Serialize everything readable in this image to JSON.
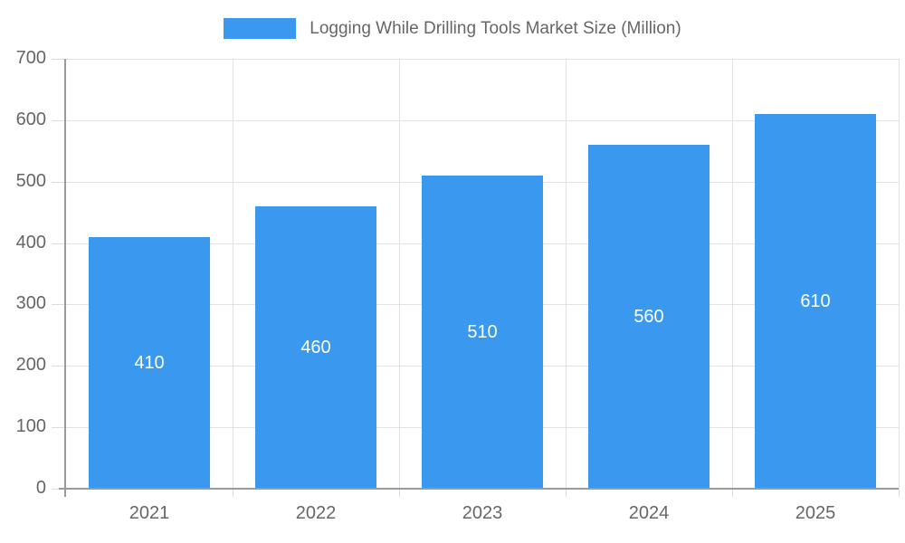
{
  "chart_data": {
    "type": "bar",
    "legend_label": "Logging While Drilling Tools Market Size (Million)",
    "categories": [
      "2021",
      "2022",
      "2023",
      "2024",
      "2025"
    ],
    "values": [
      410,
      460,
      510,
      560,
      610
    ],
    "value_labels": [
      "410",
      "460",
      "510",
      "560",
      "610"
    ],
    "ytick_labels": [
      "0",
      "100",
      "200",
      "300",
      "400",
      "500",
      "600",
      "700"
    ],
    "ylim": [
      0,
      700
    ],
    "ytick_step": 100,
    "grid": true,
    "legend_position": "top",
    "colors": {
      "bar": "#3a99ee",
      "value_label": "#ffffff",
      "axis_text": "#666666",
      "legend_text": "#666666",
      "gridline": "#e3e3e3",
      "axis_line": "#9a9a9a"
    }
  }
}
